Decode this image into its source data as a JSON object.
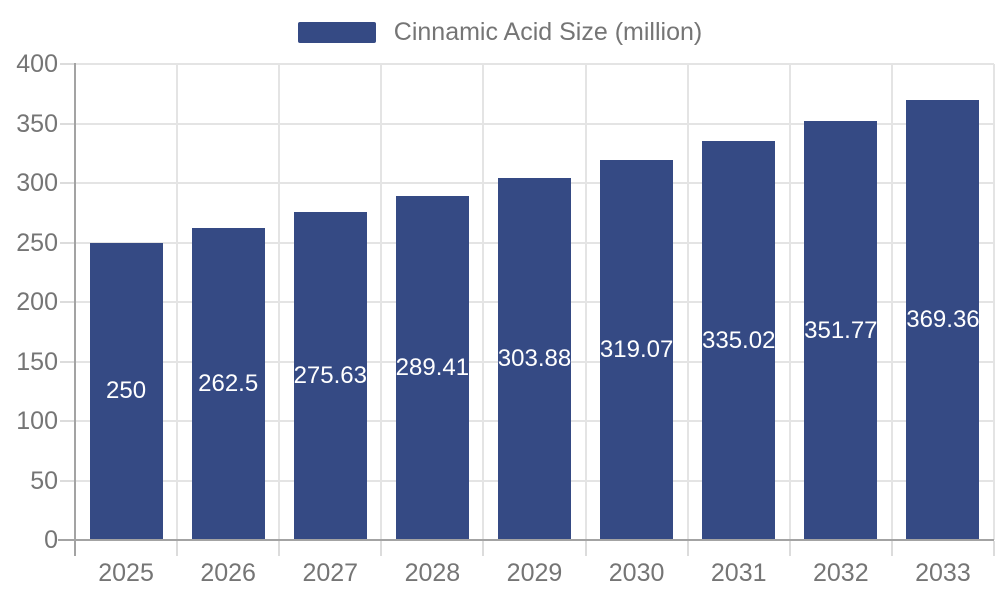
{
  "legend": {
    "label": "Cinnamic Acid Size (million)"
  },
  "chart_data": {
    "type": "bar",
    "title": "",
    "xlabel": "",
    "ylabel": "",
    "legend": "Cinnamic Acid Size (million)",
    "legend_position": "top-center",
    "categories": [
      "2025",
      "2026",
      "2027",
      "2028",
      "2029",
      "2030",
      "2031",
      "2032",
      "2033"
    ],
    "values": [
      250,
      262.5,
      275.63,
      289.41,
      303.88,
      319.07,
      335.02,
      351.77,
      369.36
    ],
    "value_labels": [
      "250",
      "262.5",
      "275.63",
      "289.41",
      "303.88",
      "319.07",
      "335.02",
      "351.77",
      "369.36"
    ],
    "ylim": [
      0,
      400
    ],
    "yticks": [
      0,
      50,
      100,
      150,
      200,
      250,
      300,
      350,
      400
    ],
    "grid": true,
    "colors": {
      "bar": "#354a84",
      "bar_label": "#ffffff",
      "axis_line": "#a3a3a3",
      "grid_line": "#e4e4e4",
      "tick_mark": "#dcdcdc",
      "tick_label": "#757575",
      "legend_text": "#757575",
      "background": "#ffffff"
    }
  }
}
